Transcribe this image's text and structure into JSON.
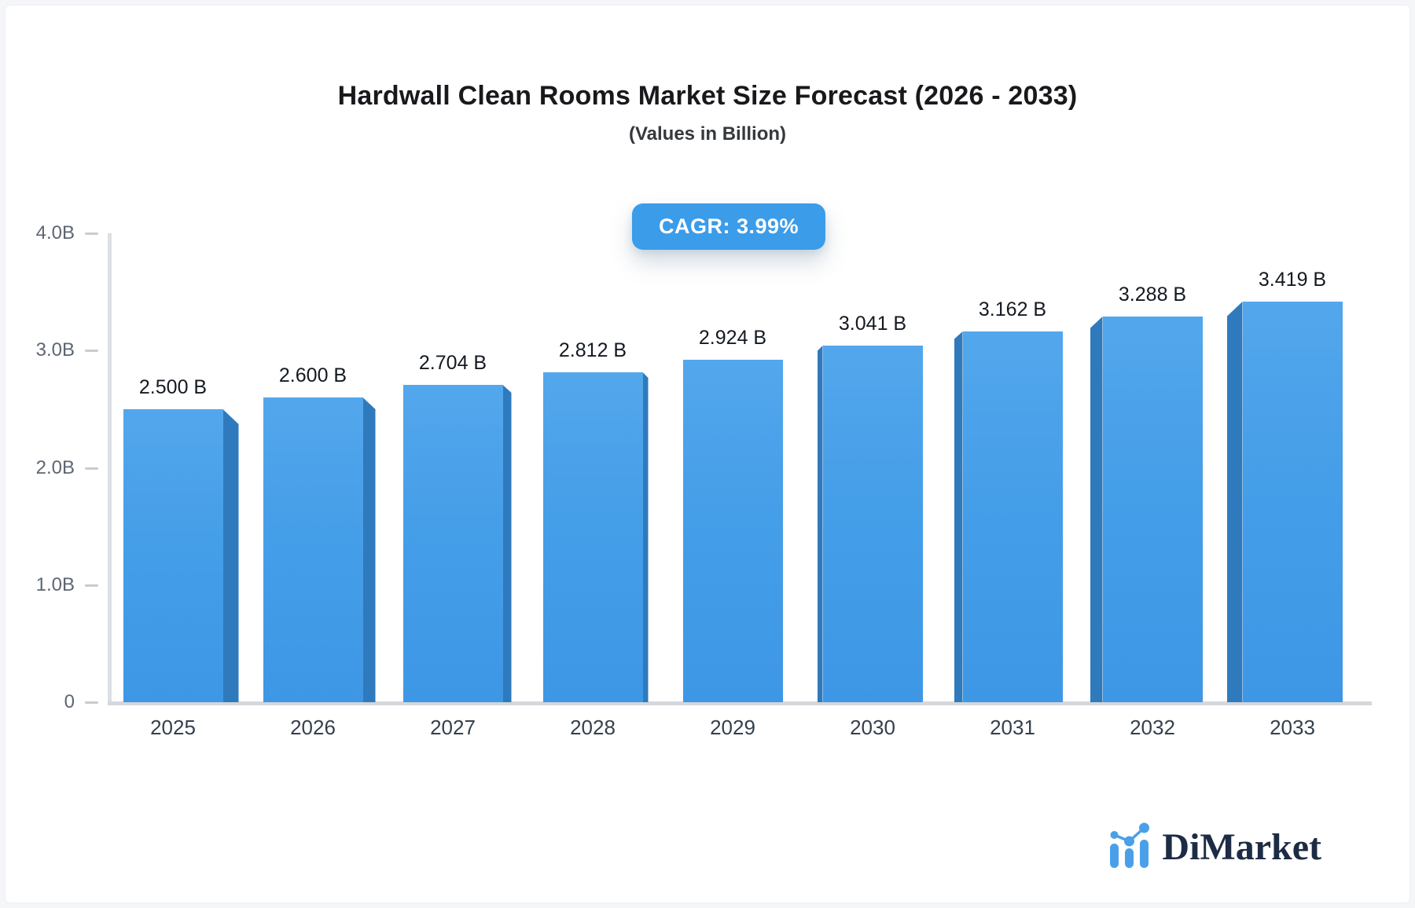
{
  "chart_data": {
    "type": "bar",
    "title": "Hardwall Clean Rooms Market Size Forecast (2026 - 2033)",
    "subtitle": "(Values in Billion)",
    "cagr_label": "CAGR: 3.99%",
    "categories": [
      "2025",
      "2026",
      "2027",
      "2028",
      "2029",
      "2030",
      "2031",
      "2032",
      "2033"
    ],
    "values": [
      2.5,
      2.6,
      2.704,
      2.812,
      2.924,
      3.041,
      3.162,
      3.288,
      3.419
    ],
    "value_labels": [
      "2.500 B",
      "2.600 B",
      "2.704 B",
      "2.812 B",
      "2.924 B",
      "3.041 B",
      "3.162 B",
      "3.288 B",
      "3.419 B"
    ],
    "unit": "B",
    "xlabel": "",
    "ylabel": "",
    "ylim": [
      0,
      4.0
    ],
    "yticks": [
      {
        "value": 0,
        "label": "0"
      },
      {
        "value": 1.0,
        "label": "1.0B"
      },
      {
        "value": 2.0,
        "label": "2.0B"
      },
      {
        "value": 3.0,
        "label": "3.0B"
      },
      {
        "value": 4.0,
        "label": "4.0B"
      }
    ],
    "grid": false,
    "legend": false,
    "bar_face_color": "#459ee8",
    "bar_side_color": "#2e7abd",
    "badge_color": "#3b9ce9"
  },
  "brand": {
    "name": "DiMarket",
    "icon": "bar-line-chart-icon",
    "icon_color": "#4aa0e8",
    "text_color": "#1d2b45"
  }
}
